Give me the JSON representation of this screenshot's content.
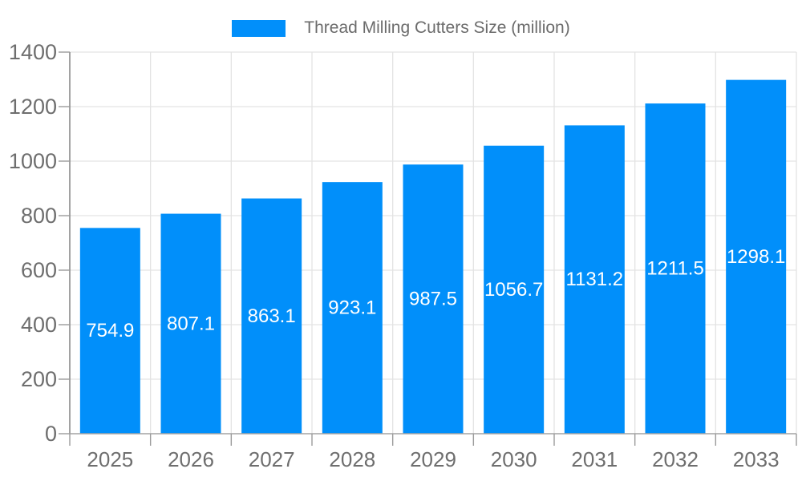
{
  "chart_data": {
    "type": "bar",
    "title": "",
    "legend_label": "Thread Milling Cutters Size (million)",
    "legend_position": "top",
    "categories": [
      "2025",
      "2026",
      "2027",
      "2028",
      "2029",
      "2030",
      "2031",
      "2032",
      "2033"
    ],
    "series": [
      {
        "name": "Thread Milling Cutters Size (million)",
        "values": [
          754.9,
          807.1,
          863.1,
          923.1,
          987.5,
          1056.7,
          1131.2,
          1211.5,
          1298.1
        ]
      }
    ],
    "value_labels": [
      "754.9",
      "807.1",
      "863.1",
      "923.1",
      "987.5",
      "1056.7",
      "1131.2",
      "1211.5",
      "1298.1"
    ],
    "xlabel": "",
    "ylabel": "",
    "ylim": [
      0,
      1400
    ],
    "ytick_step": 200,
    "yticks": [
      0,
      200,
      400,
      600,
      800,
      1000,
      1200,
      1400
    ],
    "grid": true,
    "colors": {
      "bar": "#018FFA",
      "value_label": "#FFFFFF",
      "axis_text": "#6E6E6E",
      "grid_line": "#E3E3E3",
      "y_axis_line": "#8A8A8A",
      "x_axis_line": "#A3A3A3",
      "tick": "#9B9B9B",
      "legend_text": "#6B6B6B",
      "background": "#FFFFFF"
    }
  }
}
